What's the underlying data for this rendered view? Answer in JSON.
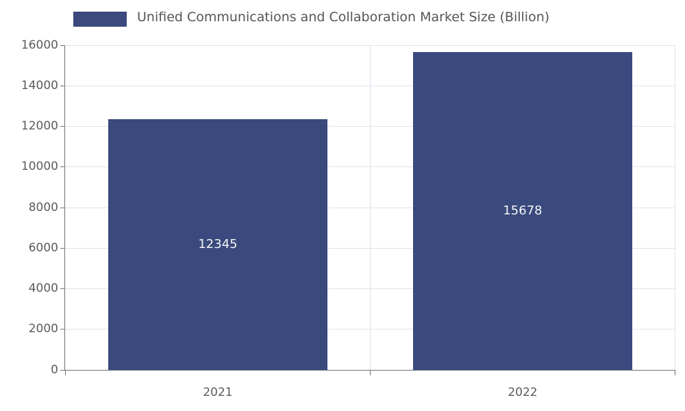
{
  "chart_data": {
    "type": "bar",
    "title": "Unified Communications and Collaboration Market Size (Billion)",
    "categories": [
      "2021",
      "2022"
    ],
    "values": [
      12345,
      15678
    ],
    "xlabel": "",
    "ylabel": "",
    "ylim": [
      0,
      16000
    ],
    "ytick_step": 2000,
    "ytick_labels": [
      "0",
      "2000",
      "4000",
      "6000",
      "8000",
      "10000",
      "12000",
      "14000",
      "16000"
    ],
    "grid": true,
    "legend_position": "top-left",
    "legend_entries": [
      "Unified Communications and Collaboration Market Size (Billion)"
    ],
    "bar_color": "#3A4A7E",
    "value_label_color": "#F5F5F5",
    "value_labels": [
      "12345",
      "15678"
    ]
  },
  "legend": {
    "title": "Unified Communications and Collaboration Market Size (Billion)",
    "swatch_color": "#3A4A7E"
  }
}
